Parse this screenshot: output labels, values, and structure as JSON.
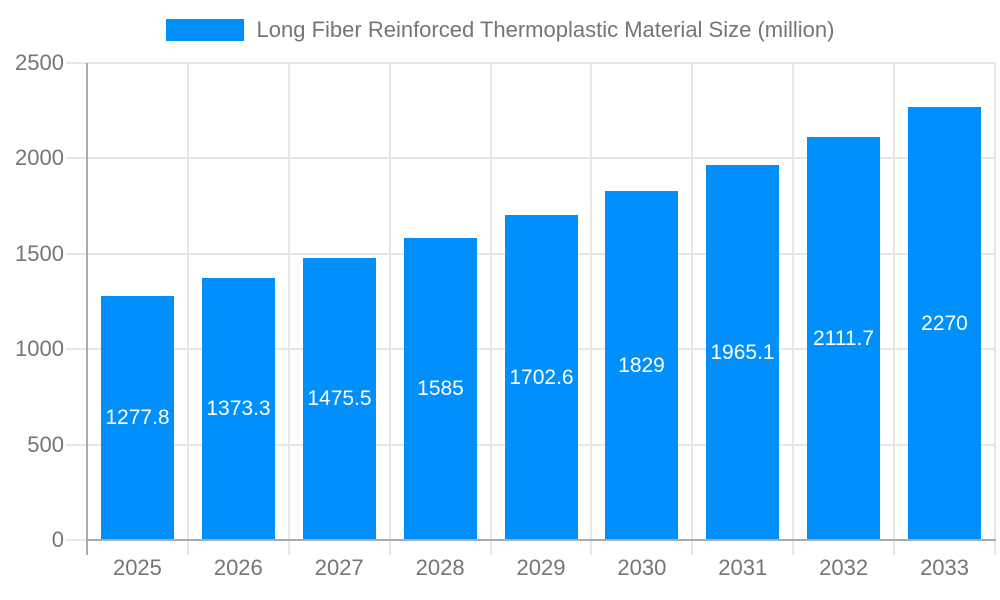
{
  "chart_data": {
    "type": "bar",
    "title": "",
    "xlabel": "",
    "ylabel": "",
    "categories": [
      "2025",
      "2026",
      "2027",
      "2028",
      "2029",
      "2030",
      "2031",
      "2032",
      "2033"
    ],
    "series": [
      {
        "name": "Long Fiber Reinforced Thermoplastic Material Size (million)",
        "values": [
          1277.8,
          1373.3,
          1475.5,
          1585,
          1702.6,
          1829,
          1965.1,
          2111.7,
          2270
        ]
      }
    ],
    "yticks": [
      0,
      500,
      1000,
      1500,
      2000,
      2500
    ],
    "ylim": [
      0,
      2500
    ],
    "grid": true,
    "legend_position": "top",
    "data_labels": "inside-center",
    "style": {
      "bar_color": "#008FFB",
      "grid_color": "#e6e6e6",
      "axis_color": "#aaaaaa",
      "text_color": "#757575",
      "data_label_color": "#ffffff"
    }
  }
}
